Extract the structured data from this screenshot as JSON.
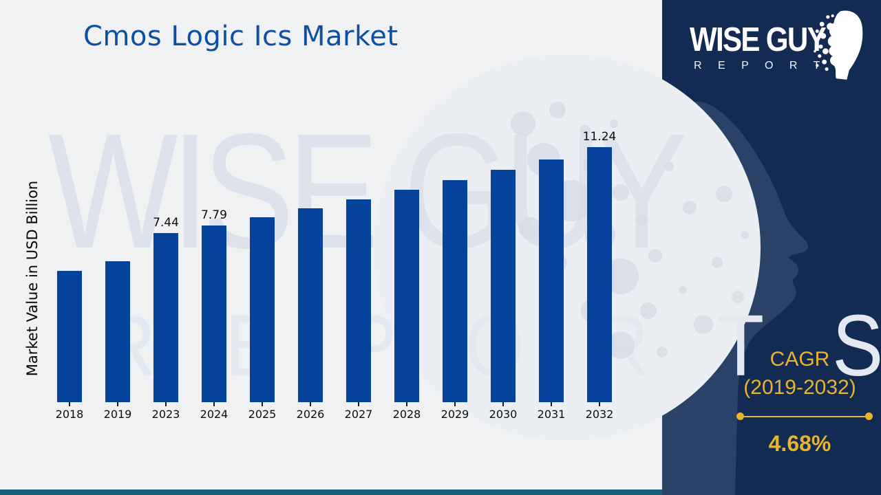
{
  "theme": {
    "background": "#f0f1f3",
    "panel_navy": "#132a52",
    "panel_face_silhouette": "#2b4268",
    "bar_blue": "#05429c",
    "title_blue": "#0d4fa0",
    "gold": "#e7b42d",
    "teal_strip": "#1b617f",
    "watermark": "#dde2ec"
  },
  "header": {
    "title": "Cmos Logic Ics Market"
  },
  "watermark": {
    "line1": "WISE GUY",
    "line2": "R E P O R T S"
  },
  "brand": {
    "name_line1": "WISE GUY",
    "name_line2": "R E P O R T S"
  },
  "cagr": {
    "label": "CAGR",
    "range": "(2019-2032)",
    "value": "4.68%"
  },
  "chart_data": {
    "type": "bar",
    "title": "Cmos Logic Ics Market",
    "xlabel": "",
    "ylabel": "Market Value in USD Billion",
    "categories": [
      "2018",
      "2019",
      "2023",
      "2024",
      "2025",
      "2026",
      "2027",
      "2028",
      "2029",
      "2030",
      "2031",
      "2032"
    ],
    "values": [
      5.8,
      6.2,
      7.44,
      7.79,
      8.15,
      8.55,
      8.95,
      9.35,
      9.8,
      10.25,
      10.7,
      11.24
    ],
    "data_labels": [
      "",
      "",
      "7.44",
      "7.79",
      "",
      "",
      "",
      "",
      "",
      "",
      "",
      "11.24"
    ],
    "unit": "USD Billion",
    "ylim": [
      0,
      12
    ],
    "grid": false,
    "legend": false,
    "bar_color": "#05429c"
  }
}
